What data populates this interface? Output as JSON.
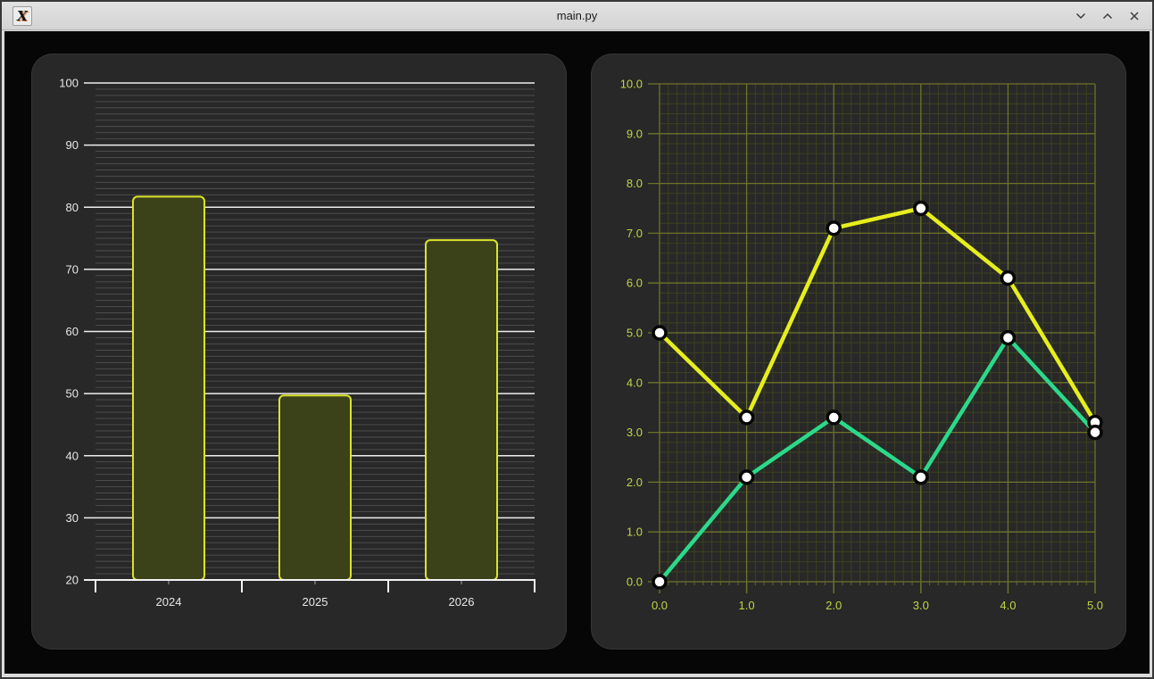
{
  "window": {
    "title": "main.py",
    "icon": "x11-logo-icon",
    "controls": [
      {
        "name": "minimize-button",
        "icon": "chevron-down-icon"
      },
      {
        "name": "maximize-button",
        "icon": "chevron-up-icon"
      },
      {
        "name": "close-button",
        "icon": "close-x-icon"
      }
    ]
  },
  "colors": {
    "titlebar_bg": "#d9d9d9",
    "content_bg": "#060606",
    "panel_bg": "#282828",
    "bar_fill": "#3b4119",
    "bar_stroke": "#d9e42b",
    "bar_major_grid": "#ededed",
    "bar_minor_grid": "#787878",
    "bar_label": "#e8e8e8",
    "bar_axis": "#f2f2f2",
    "line_major_grid": "#6d7328",
    "line_minor_grid": "#3c411e",
    "line_label": "#c2d546",
    "series_yellow": "#e7ee1d",
    "series_green": "#2bd98b",
    "marker_fill": "#ffffff",
    "marker_stroke": "#060606"
  },
  "chart_data": [
    {
      "type": "bar",
      "title": "",
      "xlabel": "",
      "ylabel": "",
      "categories": [
        "2024",
        "2025",
        "2026"
      ],
      "values": [
        81.7,
        49.7,
        74.7
      ],
      "ylim": [
        20,
        100
      ],
      "yticks": [
        20,
        30,
        40,
        50,
        60,
        70,
        80,
        90,
        100
      ],
      "ytick_labels": [
        "20",
        "30",
        "40",
        "50",
        "60",
        "70",
        "80",
        "90",
        "100"
      ],
      "minor_grid_step": 1,
      "grid": "major-white-minor-gray",
      "legend": "none"
    },
    {
      "type": "line",
      "title": "",
      "xlabel": "",
      "ylabel": "",
      "xlim": [
        0,
        5
      ],
      "ylim": [
        0,
        10
      ],
      "xticks": [
        0,
        1,
        2,
        3,
        4,
        5
      ],
      "xtick_labels": [
        "0.0",
        "1.0",
        "2.0",
        "3.0",
        "4.0",
        "5.0"
      ],
      "yticks": [
        0,
        1,
        2,
        3,
        4,
        5,
        6,
        7,
        8,
        9,
        10
      ],
      "ytick_labels": [
        "0.0",
        "1.0",
        "2.0",
        "3.0",
        "4.0",
        "5.0",
        "6.0",
        "7.0",
        "8.0",
        "9.0",
        "10.0"
      ],
      "x_minor_step": 0.1,
      "y_minor_step": 0.2,
      "grid": "major-and-minor-olive",
      "legend": "none",
      "series": [
        {
          "name": "series-yellow",
          "x": [
            0,
            1,
            2,
            3,
            4,
            5
          ],
          "y": [
            5.0,
            3.3,
            7.1,
            7.5,
            6.1,
            3.2
          ]
        },
        {
          "name": "series-green",
          "x": [
            0,
            1,
            2,
            3,
            4,
            5
          ],
          "y": [
            0.0,
            2.1,
            3.3,
            2.1,
            4.9,
            3.0
          ]
        }
      ]
    }
  ]
}
